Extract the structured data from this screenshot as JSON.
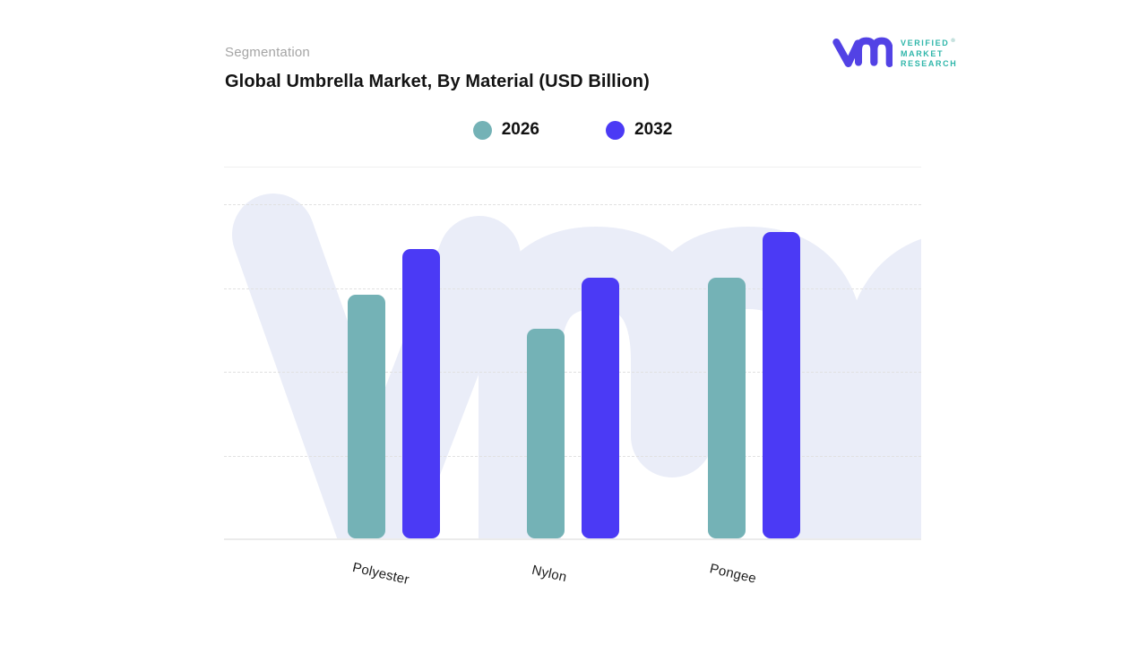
{
  "header": {
    "eyebrow": "Segmentation",
    "title": "Global Umbrella Market, By Material (USD Billion)"
  },
  "logo": {
    "line1": "VERIFIED",
    "line2": "MARKET",
    "line3": "RESEARCH",
    "registered": "®"
  },
  "legend": [
    {
      "label": "2026",
      "color": "#74B2B6"
    },
    {
      "label": "2032",
      "color": "#4B3AF5"
    }
  ],
  "colors": {
    "series_2026": "#74B2B6",
    "series_2032": "#4B3AF5",
    "watermark": "#EAEDF8",
    "gridline": "#E1E1E1",
    "baseline": "#EBEBEB",
    "title_text": "#131313",
    "eyebrow_text": "#A5A5A5",
    "logo_purple": "#5242E5",
    "logo_teal": "#2FB6AA"
  },
  "chart_data": {
    "type": "bar",
    "title": "Global Umbrella Market, By Material (USD Billion)",
    "categories": [
      "Polyester",
      "Nylon",
      "Pongee"
    ],
    "series": [
      {
        "name": "2026",
        "color": "#74B2B6",
        "values": [
          2.9,
          2.5,
          3.1
        ]
      },
      {
        "name": "2032",
        "color": "#4B3AF5",
        "values": [
          3.45,
          3.1,
          3.65
        ]
      }
    ],
    "xlabel": "",
    "ylabel": "",
    "ylim": [
      0,
      4
    ],
    "value_scale": "relative-gridline-units (y-axis unlabeled in source)",
    "grid": "horizontal-dashed",
    "legend_position": "top-center",
    "x_tick_rotation_deg": 13
  }
}
